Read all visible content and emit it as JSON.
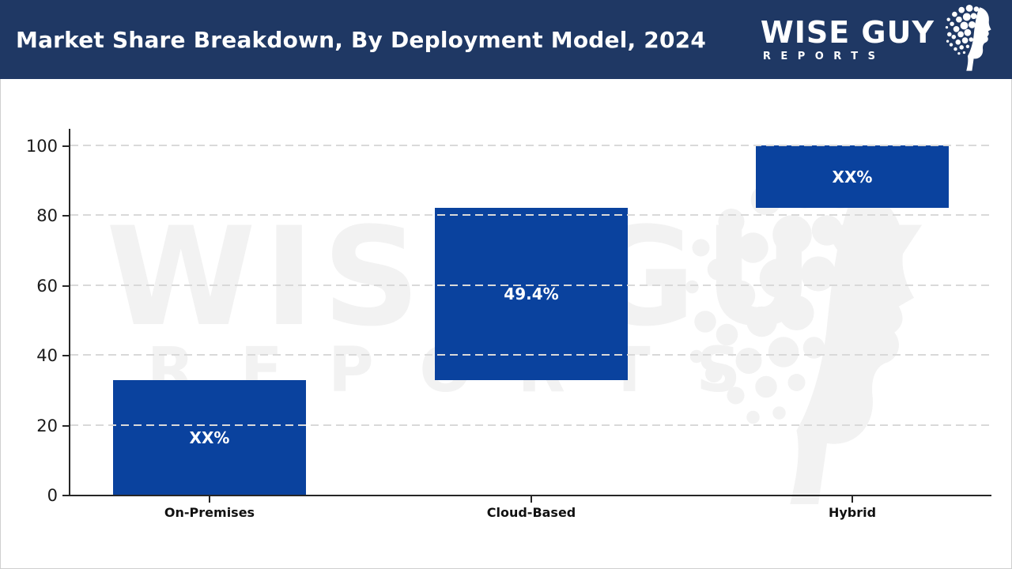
{
  "header": {
    "title": "Market Share Breakdown, By Deployment Model, 2024",
    "logo": {
      "text": "WISE GUY",
      "subtext": "REPORTS"
    }
  },
  "watermark": {
    "text": "WISE GUY",
    "subtext": "REPORTS"
  },
  "colors": {
    "header_bg": "#1f3864",
    "bar": "#0a429e",
    "gridline": "#d9d9d9",
    "axis": "#262626",
    "watermark": "#f2f2f2"
  },
  "chart_data": {
    "type": "bar",
    "subtype": "waterfall",
    "title": "Market Share Breakdown, By Deployment Model, 2024",
    "categories": [
      "On-Premises",
      "Cloud-Based",
      "Hybrid"
    ],
    "segments": [
      {
        "category": "On-Premises",
        "start": 0,
        "end": 32.7,
        "label": "XX%"
      },
      {
        "category": "Cloud-Based",
        "start": 32.7,
        "end": 82.1,
        "label": "49.4%"
      },
      {
        "category": "Hybrid",
        "start": 82.1,
        "end": 100,
        "label": "XX%"
      }
    ],
    "y_ticks": [
      0,
      20,
      40,
      60,
      80,
      100
    ],
    "ylim": [
      0,
      105
    ],
    "xlabel": "",
    "ylabel": "",
    "grid": "horizontal-dashed",
    "legend": "none"
  }
}
